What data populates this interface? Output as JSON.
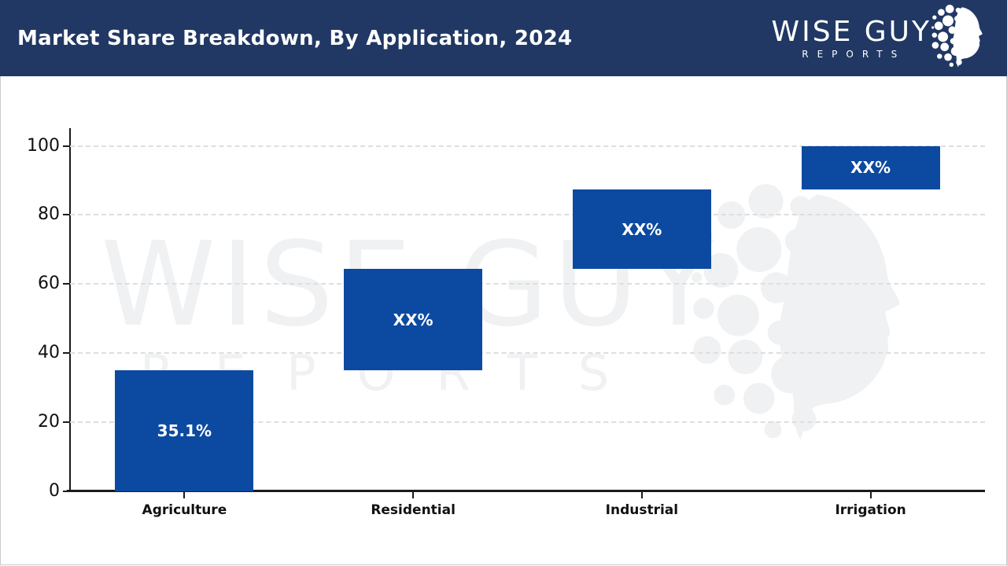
{
  "page": {
    "bg": "#ffffff",
    "border_color": "#cccccc"
  },
  "header": {
    "bg": "#213864",
    "title": "Market Share Breakdown, By Application, 2024",
    "logo_line1": "WISE GUY",
    "logo_line2": "REPORTS"
  },
  "watermark": {
    "line1": "WISE GUY",
    "line2": "REPORTS"
  },
  "chart_data": {
    "type": "bar",
    "subtype": "floating-waterfall",
    "title": "Market Share Breakdown, By Application, 2024",
    "categories": [
      "Agriculture",
      "Residential",
      "Industrial",
      "Irrigation"
    ],
    "bars": [
      {
        "category": "Agriculture",
        "from": 0,
        "to": 35.1,
        "label": "35.1%"
      },
      {
        "category": "Residential",
        "from": 35.1,
        "to": 64.3,
        "label": "XX%"
      },
      {
        "category": "Industrial",
        "from": 64.3,
        "to": 87.3,
        "label": "XX%"
      },
      {
        "category": "Irrigation",
        "from": 87.3,
        "to": 100,
        "label": "XX%"
      }
    ],
    "yticks": [
      0,
      20,
      40,
      60,
      80,
      100
    ],
    "ylim": [
      0,
      100
    ],
    "xlabel": "",
    "ylabel": "",
    "grid": {
      "horizontal": true,
      "style": "dashed",
      "color": "#dedede"
    },
    "legend": false,
    "bar_color": "#0c4aa1",
    "bar_label_color": "#ffffff",
    "axis_color": "#1a1a1a"
  }
}
